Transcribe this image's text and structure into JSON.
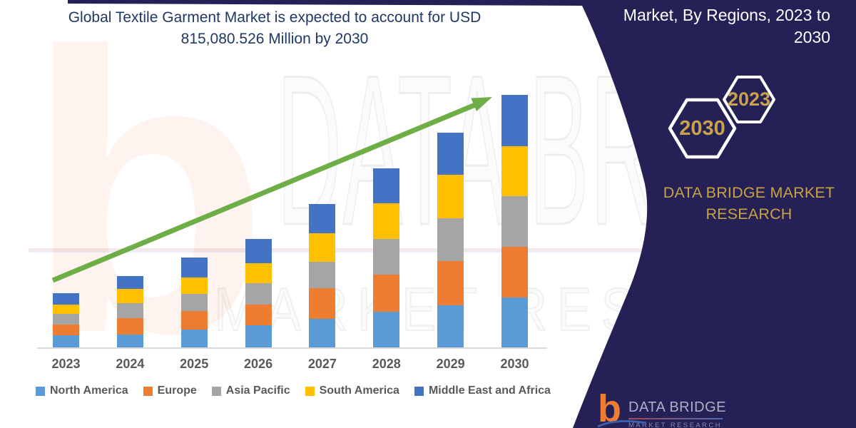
{
  "title": {
    "line1": "Global Textile Garment Market is expected to account for USD",
    "line2": "815,080.526 Million by 2030"
  },
  "side_panel": {
    "heading_line1": "Market, By Regions, 2023 to",
    "heading_line2": "2030",
    "hexagon_top_label": "2023",
    "hexagon_bottom_label": "2030",
    "brand_line1": "DATA BRIDGE MARKET",
    "brand_line2": "RESEARCH"
  },
  "watermark": {
    "big_text": "DATA BRIDGE",
    "sub_text": "MARKET RESEARCH",
    "glyph": "b"
  },
  "footer_logo": {
    "glyph": "b",
    "name": "DATA BRIDGE",
    "sub": "MARKET RESEARCH"
  },
  "colors": {
    "panel_navy": "#252056",
    "gold": "#C9A24B",
    "title_navy": "#1F3864",
    "arrow_green": "#6FAD47",
    "axis_gray": "#D9D9D9",
    "label_gray": "#595959",
    "logo_orange": "#ED7D31"
  },
  "chart_data": {
    "type": "bar",
    "stacked": true,
    "title": "Global Textile Garment Market, By Regions, 2023 to 2030",
    "units": "USD Million (estimated from bar heights; only the 2030 total 815,080.526 is labeled)",
    "categories": [
      "2023",
      "2024",
      "2025",
      "2026",
      "2027",
      "2028",
      "2029",
      "2030"
    ],
    "series": [
      {
        "name": "North America",
        "color": "#5B9BD5",
        "values": [
          39900,
          42200,
          57600,
          70700,
          92100,
          115200,
          135900,
          161200
        ]
      },
      {
        "name": "Europe",
        "color": "#ED7D31",
        "values": [
          34600,
          53000,
          59200,
          67500,
          99900,
          119100,
          142800,
          163800
        ]
      },
      {
        "name": "Asia Pacific",
        "color": "#A5A5A5",
        "values": [
          32900,
          48400,
          56000,
          69100,
          84300,
          115200,
          138200,
          162600
        ]
      },
      {
        "name": "South America",
        "color": "#FFC000",
        "values": [
          30900,
          46100,
          53700,
          65400,
          92100,
          115200,
          141400,
          161200
        ]
      },
      {
        "name": "Middle East and Africa",
        "color": "#4472C4",
        "values": [
          37500,
          40500,
          62900,
          76700,
          94400,
          113600,
          135000,
          166281
        ]
      }
    ],
    "totals_estimated": [
      175800,
      230200,
      289400,
      349400,
      462800,
      578300,
      693300,
      815080.526
    ],
    "ylim": [
      0,
      815080.526
    ],
    "grid": false,
    "y_axis_shown": false,
    "legend_position": "bottom",
    "annotations": [
      "green upward trend arrow across bars from 2023 to 2030"
    ]
  }
}
